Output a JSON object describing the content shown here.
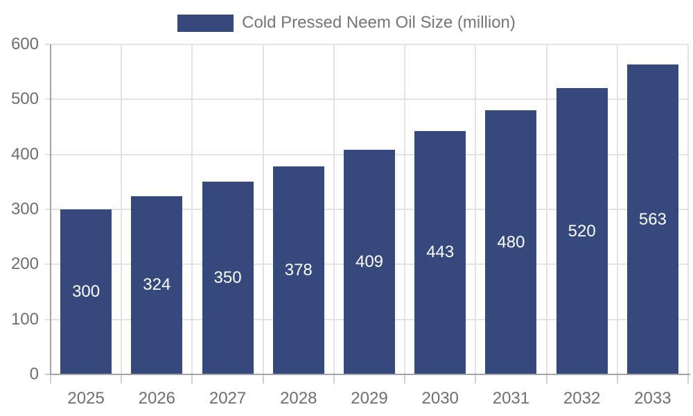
{
  "legend": {
    "label": "Cold Pressed Neem Oil Size (million)"
  },
  "colors": {
    "bar": "#36497d",
    "axis_line": "#a2a2a8",
    "tick": "#cdcdd4",
    "grid": "#e3e3e6",
    "axis_label": "#6e6e73",
    "value_label": "#ffffff",
    "legend_text": "#757575",
    "background": "#ffffff"
  },
  "chart_data": {
    "type": "bar",
    "title": "",
    "series_name": "Cold Pressed Neem Oil Size (million)",
    "categories": [
      "2025",
      "2026",
      "2027",
      "2028",
      "2029",
      "2030",
      "2031",
      "2032",
      "2033"
    ],
    "values": [
      300,
      324,
      350,
      378,
      409,
      443,
      480,
      520,
      563
    ],
    "xlabel": "",
    "ylabel": "",
    "ylim": [
      0,
      600
    ],
    "ytick_interval": 100,
    "yticks": [
      0,
      100,
      200,
      300,
      400,
      500,
      600
    ],
    "grid": true,
    "legend_position": "top",
    "value_label_position": "inside-center"
  }
}
